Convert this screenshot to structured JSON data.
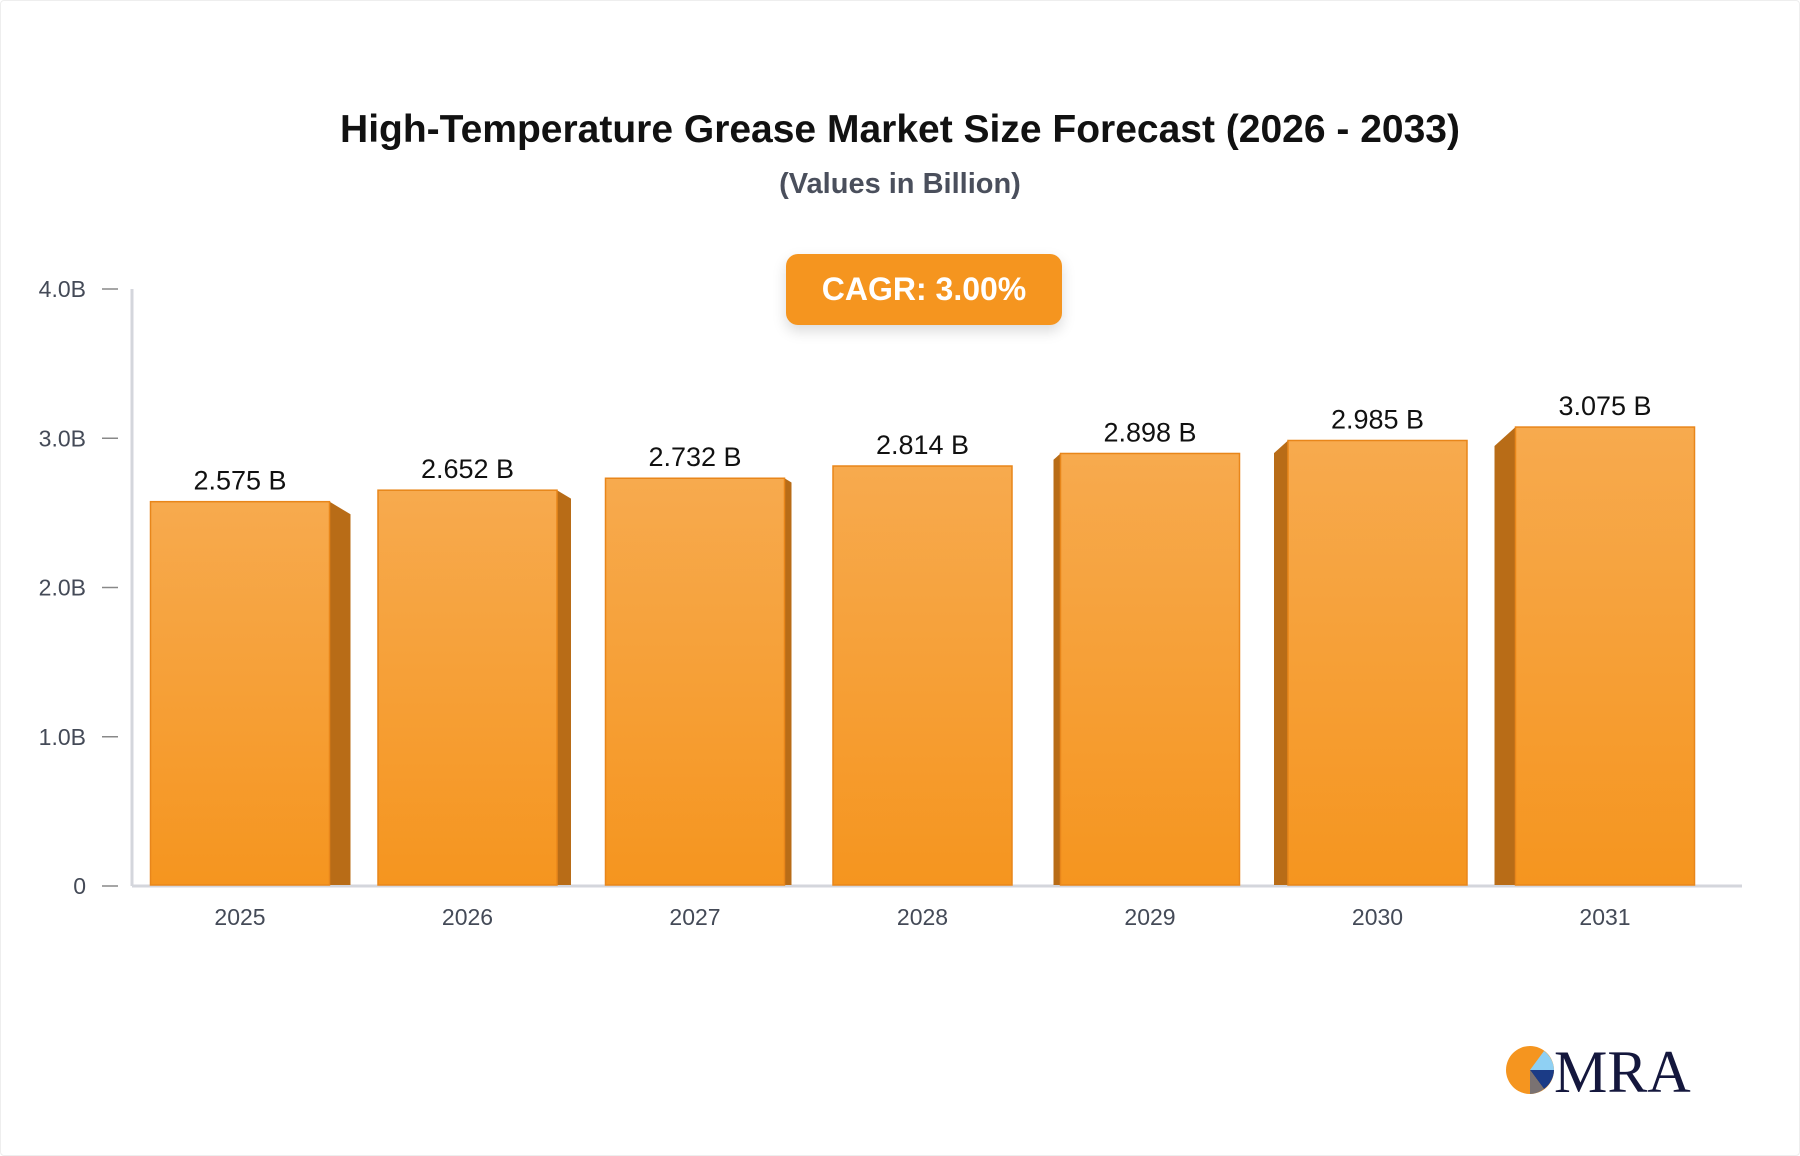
{
  "chart_data": {
    "type": "bar",
    "title": "High-Temperature Grease Market Size Forecast (2026 - 2033)",
    "subtitle": "(Values in Billion)",
    "annotation": "CAGR: 3.00%",
    "categories": [
      "2025",
      "2026",
      "2027",
      "2028",
      "2029",
      "2030",
      "2031"
    ],
    "values": [
      2.575,
      2.652,
      2.732,
      2.814,
      2.898,
      2.985,
      3.075
    ],
    "data_labels": [
      "2.575 B",
      "2.652 B",
      "2.732 B",
      "2.814 B",
      "2.898 B",
      "2.985 B",
      "3.075 B"
    ],
    "yticks": [
      0,
      1,
      2,
      3,
      4
    ],
    "ytick_labels": [
      "0",
      "1.0B",
      "2.0B",
      "3.0B",
      "4.0B"
    ],
    "ylim": [
      0,
      4
    ],
    "xlabel": "",
    "ylabel": "",
    "grid": false,
    "colors": {
      "bar": "#f5951f",
      "bar_top": "#f7aa4e",
      "bar_side": "#b86c17",
      "axis": "#d4d6dc"
    }
  },
  "logo": {
    "text": "MRA"
  }
}
